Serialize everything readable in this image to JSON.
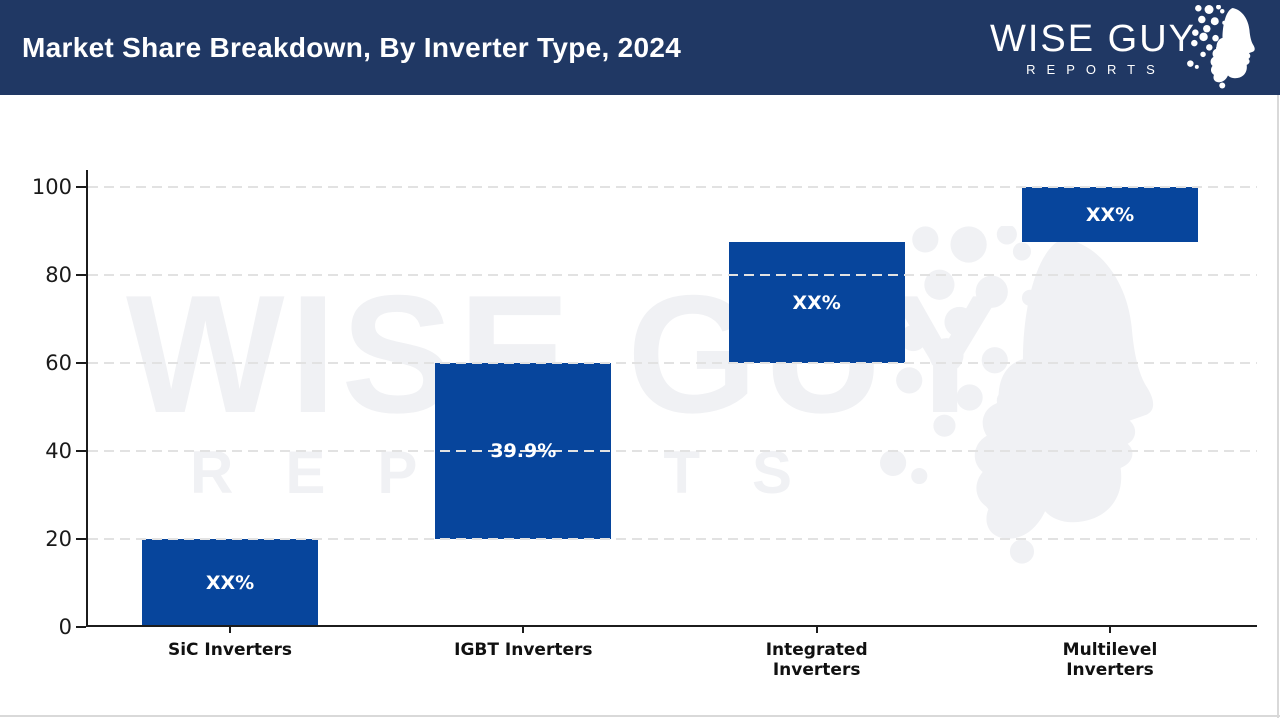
{
  "header": {
    "title": "Market Share Breakdown, By Inverter Type, 2024",
    "logo": {
      "name": "WISE GUY",
      "subtitle": "REPORTS"
    }
  },
  "watermark": {
    "line1": "WISE GUY",
    "line2": "REPORTS"
  },
  "colors": {
    "header_bg": "#203864",
    "bar": "#07459c",
    "grid": "#e2e2e2",
    "axis": "#1c1c1c",
    "watermark": "#f0f1f4"
  },
  "chart_data": {
    "type": "bar",
    "subtype": "waterfall-floating-bars",
    "title": "Market Share Breakdown, By Inverter Type, 2024",
    "categories": [
      "SiC Inverters",
      "IGBT Inverters",
      "Integrated Inverters",
      "Multilevel Inverters"
    ],
    "segments": [
      {
        "category": "SiC Inverters",
        "start": 0,
        "end": 20,
        "label": "XX%"
      },
      {
        "category": "IGBT Inverters",
        "start": 20,
        "end": 59.9,
        "label": "39.9%"
      },
      {
        "category": "Integrated Inverters",
        "start": 59.9,
        "end": 87.4,
        "label": "XX%"
      },
      {
        "category": "Multilevel Inverters",
        "start": 87.4,
        "end": 100,
        "label": "XX%"
      }
    ],
    "xlabel": "",
    "ylabel": "",
    "ylim": [
      0,
      100
    ],
    "yticks": [
      0,
      20,
      40,
      60,
      80,
      100
    ],
    "grid": "horizontal-dashed-over-bars",
    "legend": "none",
    "bar_color": "#07459c",
    "bar_label_color": "#ffffff"
  }
}
